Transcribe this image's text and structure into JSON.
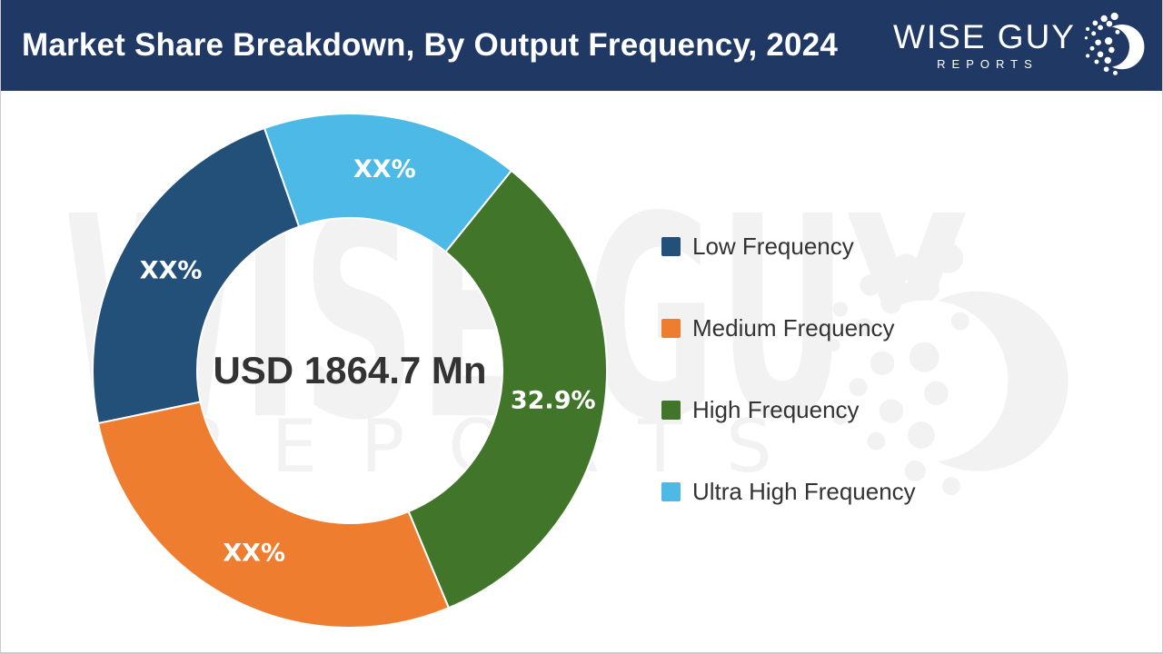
{
  "header": {
    "title": "Market Share Breakdown, By Output Frequency, 2024",
    "logo": {
      "name": "WISE GUY",
      "subtitle": "REPORTS"
    }
  },
  "watermark": {
    "line1": "WISE GUY",
    "line2": "REPORTS"
  },
  "chart_data": {
    "type": "pie",
    "subtype": "donut",
    "title": "Market Share Breakdown, By Output Frequency, 2024",
    "center_label": "USD 1864.7 Mn",
    "legend_position": "right",
    "hole_ratio": 0.59,
    "start_angle_deg": -19.4,
    "direction": "counterclockwise",
    "segments": [
      {
        "name": "Low Frequency",
        "value": 22.9,
        "display_label": "XX%",
        "color": "#235078"
      },
      {
        "name": "Medium Frequency",
        "value": 28.0,
        "display_label": "XX%",
        "color": "#ee7d2f"
      },
      {
        "name": "High Frequency",
        "value": 32.9,
        "display_label": "32.9%",
        "color": "#40752a"
      },
      {
        "name": "Ultra High Frequency",
        "value": 16.2,
        "display_label": "XX%",
        "color": "#4cb9e6"
      }
    ]
  }
}
